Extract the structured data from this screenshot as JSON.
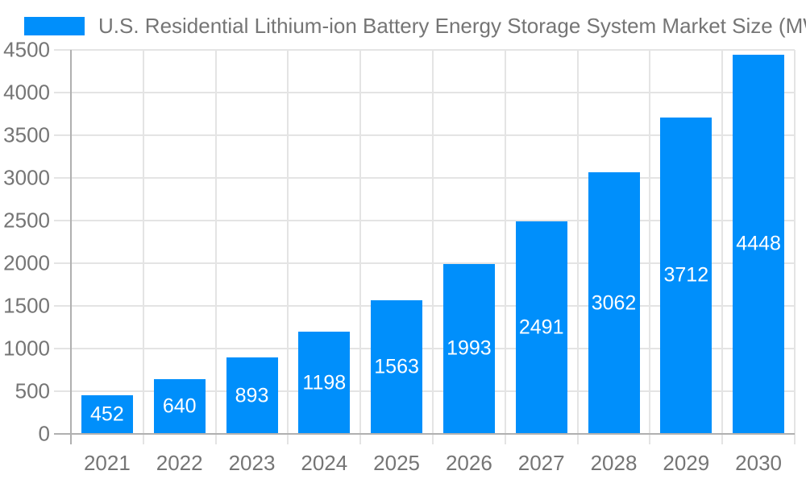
{
  "chart_data": {
    "type": "bar",
    "title": "U.S. Residential Lithium-ion Battery Energy Storage System Market Size (MW)",
    "categories": [
      "2021",
      "2022",
      "2023",
      "2024",
      "2025",
      "2026",
      "2027",
      "2028",
      "2029",
      "2030"
    ],
    "values": [
      452,
      640,
      893,
      1198,
      1563,
      1993,
      2491,
      3062,
      3712,
      4448
    ],
    "y_ticks": [
      0,
      500,
      1000,
      1500,
      2000,
      2500,
      3000,
      3500,
      4000,
      4500
    ],
    "ylim": [
      0,
      4500
    ],
    "xlabel": "",
    "ylabel": "",
    "grid": true,
    "legend_position": "top-left",
    "colors": {
      "bar": "#008ffb",
      "axis_text": "#757575",
      "gridline": "#e4e4e4",
      "axis_line": "#b0b0b0",
      "value_label": "#ffffff",
      "background": "#ffffff"
    }
  }
}
